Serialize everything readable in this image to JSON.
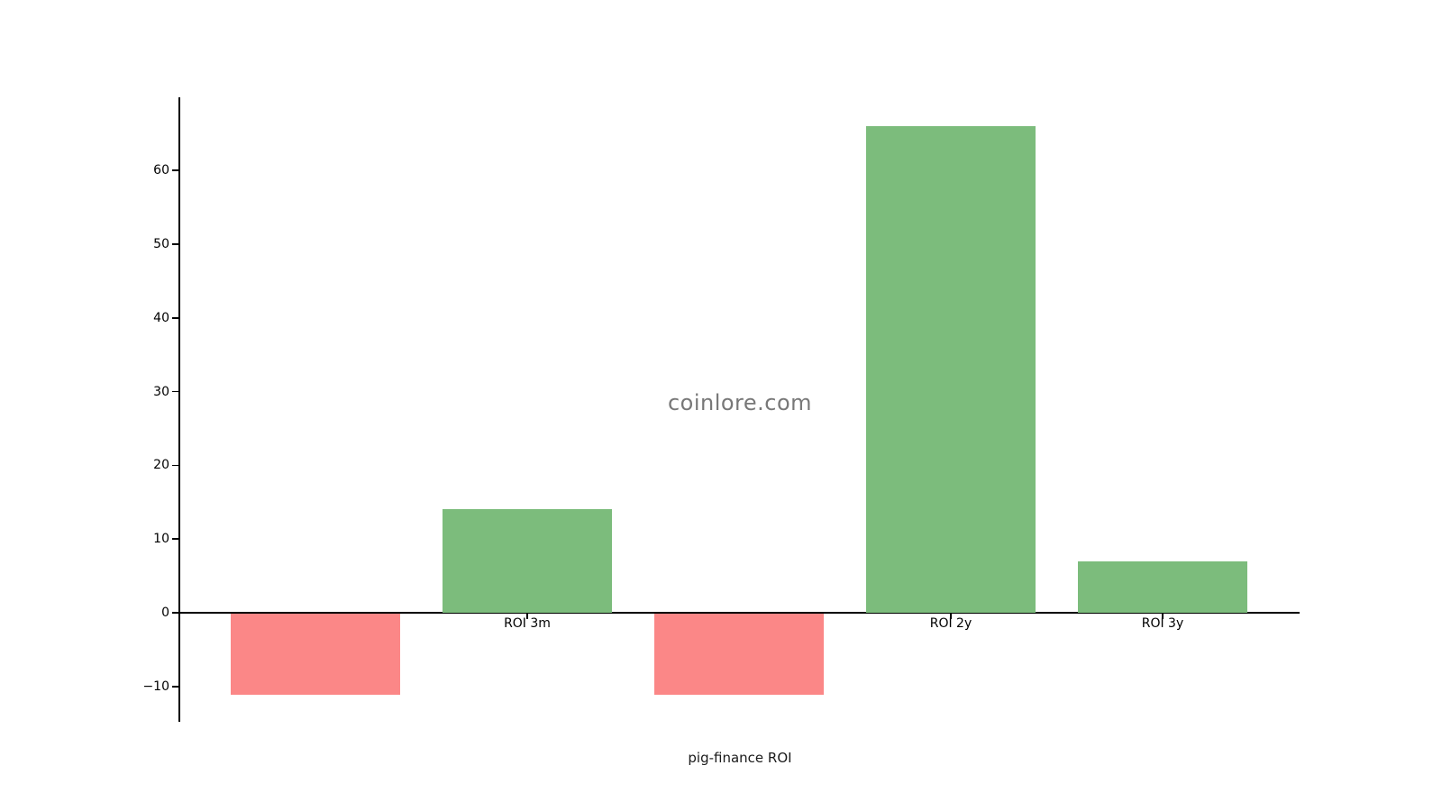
{
  "chart_data": {
    "type": "bar",
    "title": "pig-finance ROI",
    "watermark": "coinlore.com",
    "grid": false,
    "legend": "none",
    "ylim": [
      -14.8,
      69.9
    ],
    "y_axis": {
      "tick_labels": [
        "60",
        "50",
        "40",
        "30",
        "20",
        "10",
        "0",
        "−10"
      ],
      "tick_values": [
        60,
        50,
        40,
        30,
        20,
        10,
        0,
        -10
      ]
    },
    "x_axis": {
      "visible_tick_labels": [
        "ROI 3m",
        "ROI 2y",
        "ROI 3y"
      ]
    },
    "bars": [
      {
        "label": "",
        "value": -11,
        "color": "#fb8787"
      },
      {
        "label": "ROI 3m",
        "value": 14,
        "color": "#7cbc7c"
      },
      {
        "label": "",
        "value": -11,
        "color": "#fb8787"
      },
      {
        "label": "ROI 2y",
        "value": 66,
        "color": "#7cbc7c"
      },
      {
        "label": "ROI 3y",
        "value": 7,
        "color": "#7cbc7c"
      }
    ],
    "colors": {
      "positive": "#7cbc7c",
      "negative": "#fb8787",
      "axis": "#000000",
      "watermark_text": "#787878",
      "background": "#ffffff"
    }
  }
}
